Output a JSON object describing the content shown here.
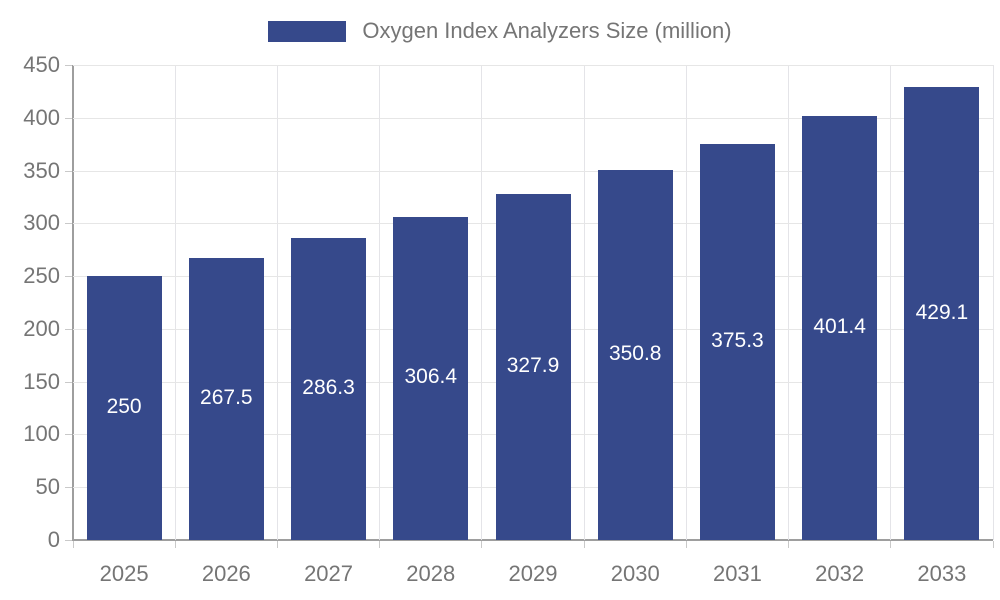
{
  "chart_data": {
    "type": "bar",
    "title": "Oxygen Index Analyzers Size (million)",
    "categories": [
      "2025",
      "2026",
      "2027",
      "2028",
      "2029",
      "2030",
      "2031",
      "2032",
      "2033"
    ],
    "values": [
      250,
      267.5,
      286.3,
      306.4,
      327.9,
      350.8,
      375.3,
      401.4,
      429.1
    ],
    "value_labels": [
      "250",
      "267.5",
      "286.3",
      "306.4",
      "327.9",
      "350.8",
      "375.3",
      "401.4",
      "429.1"
    ],
    "xlabel": "",
    "ylabel": "",
    "ylim": [
      0,
      450
    ],
    "yticks": [
      0,
      50,
      100,
      150,
      200,
      250,
      300,
      350,
      400,
      450
    ],
    "ytick_labels": [
      "0",
      "50",
      "100",
      "150",
      "200",
      "250",
      "300",
      "350",
      "400",
      "450"
    ],
    "grid": "on",
    "legend_position": "top-center",
    "colors": {
      "bar_fill": "#36498B",
      "bar_label_text": "#ffffff",
      "axis_line": "#9e9e9e",
      "gridline": "#e6e6e6",
      "tick_text": "#757575",
      "legend_text": "#757575"
    }
  }
}
